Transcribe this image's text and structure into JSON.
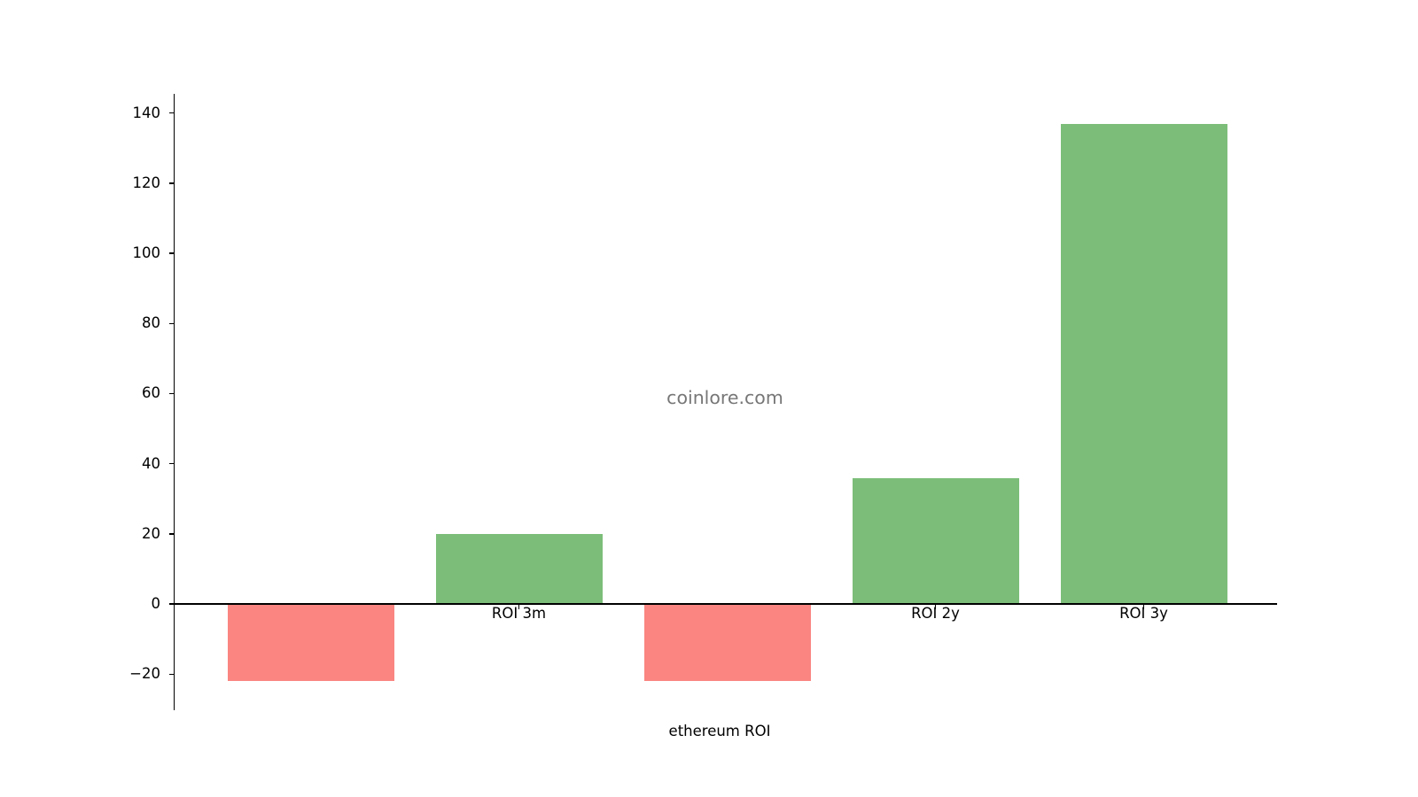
{
  "page": {
    "background": "#ffffff"
  },
  "chart_data": {
    "type": "bar",
    "title": "",
    "xlabel": "ethereum ROI",
    "ylabel": "",
    "watermark": "coinlore.com",
    "categories": [
      "",
      "ROI 3m",
      "",
      "ROI 2y",
      "ROI 3y"
    ],
    "values": [
      -22,
      20,
      -22,
      36,
      137
    ],
    "yticks": [
      -20,
      0,
      20,
      40,
      60,
      80,
      100,
      120,
      140
    ],
    "ylim": [
      -30.3,
      145.5
    ],
    "grid": false,
    "legend": "none",
    "colors": {
      "positive": "#7cbe79",
      "negative": "#fa8581",
      "axis": "#000000",
      "tick_label": "#000000",
      "watermark": "#777777"
    }
  }
}
